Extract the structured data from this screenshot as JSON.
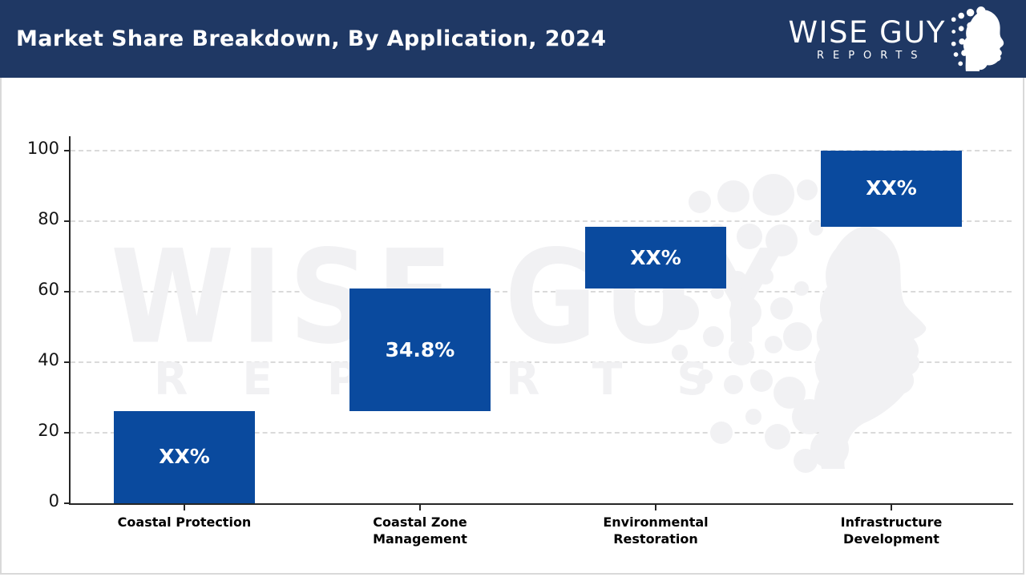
{
  "header": {
    "title": "Market Share Breakdown, By Application, 2024",
    "logo": {
      "name": "WISE GUY",
      "tagline": "REPORTS"
    }
  },
  "watermark": {
    "line1": "WISE GUY",
    "line2": "REPORTS"
  },
  "colors": {
    "header_bg": "#1F3864",
    "bar": "#0A4A9E",
    "bar_label": "#FFFFFF",
    "axis": "#262626",
    "grid": "#DADADA",
    "watermark": "#F1F1F3"
  },
  "chart_data": {
    "type": "bar",
    "subtype": "waterfall",
    "title": "Market Share Breakdown, By Application, 2024",
    "xlabel": "",
    "ylabel": "",
    "ylim": [
      0,
      104
    ],
    "yticks": [
      0,
      20,
      40,
      60,
      80,
      100
    ],
    "grid": "horizontal-dashed",
    "legend": null,
    "categories": [
      "Coastal Protection",
      "Coastal Zone Management",
      "Environmental Restoration",
      "Infrastructure Development"
    ],
    "category_label_lines": [
      [
        "Coastal Protection"
      ],
      [
        "Coastal Zone",
        "Management"
      ],
      [
        "Environmental",
        "Restoration"
      ],
      [
        "Infrastructure",
        "Development"
      ]
    ],
    "segments": [
      {
        "category": "Coastal Protection",
        "start": 0,
        "end": 26.1,
        "value_label": "XX%"
      },
      {
        "category": "Coastal Zone Management",
        "start": 26.1,
        "end": 60.9,
        "value": 34.8,
        "value_label": "34.8%"
      },
      {
        "category": "Environmental Restoration",
        "start": 60.9,
        "end": 78.5,
        "value_label": "XX%"
      },
      {
        "category": "Infrastructure Development",
        "start": 78.5,
        "end": 100,
        "value_label": "XX%"
      }
    ]
  }
}
